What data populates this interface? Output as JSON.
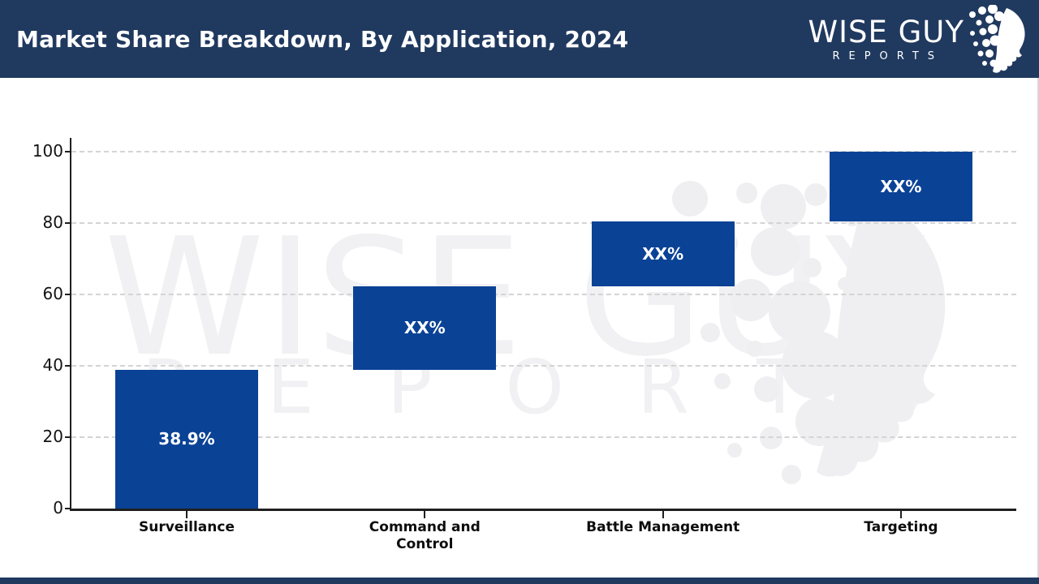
{
  "header": {
    "title": "Market Share Breakdown, By Application, 2024",
    "bg_color": "#20395f",
    "logo": {
      "line1": "WISE GUY",
      "line2": "REPORTS"
    }
  },
  "watermark": {
    "big_text": "WISE GUY",
    "small_text": "REPORTS"
  },
  "chart_data": {
    "type": "bar",
    "subtype": "waterfall",
    "title": "Market Share Breakdown, By Application, 2024",
    "categories": [
      "Surveillance",
      "Command and Control",
      "Battle Management",
      "Targeting"
    ],
    "category_lines": [
      [
        "Surveillance"
      ],
      [
        "Command and",
        "Control"
      ],
      [
        "Battle Management"
      ],
      [
        "Targeting"
      ]
    ],
    "segments": [
      {
        "category": "Surveillance",
        "start": 0,
        "end": 38.9,
        "label": "38.9%"
      },
      {
        "category": "Command and Control",
        "start": 38.9,
        "end": 62.3,
        "label": "XX%"
      },
      {
        "category": "Battle Management",
        "start": 62.3,
        "end": 80.5,
        "label": "XX%"
      },
      {
        "category": "Targeting",
        "start": 80.5,
        "end": 100,
        "label": "XX%"
      }
    ],
    "yticks": [
      0,
      20,
      40,
      60,
      80,
      100
    ],
    "ylim": [
      0,
      105
    ],
    "xlabel": "",
    "ylabel": "",
    "legend": "none",
    "grid": "horizontal-dashed",
    "bar_color": "#0a4296",
    "bar_label_color": "#ffffff",
    "axis_color": "#1f1f1f",
    "gridline_color": "#d4d4d4",
    "tick_label_color": "#141414"
  }
}
